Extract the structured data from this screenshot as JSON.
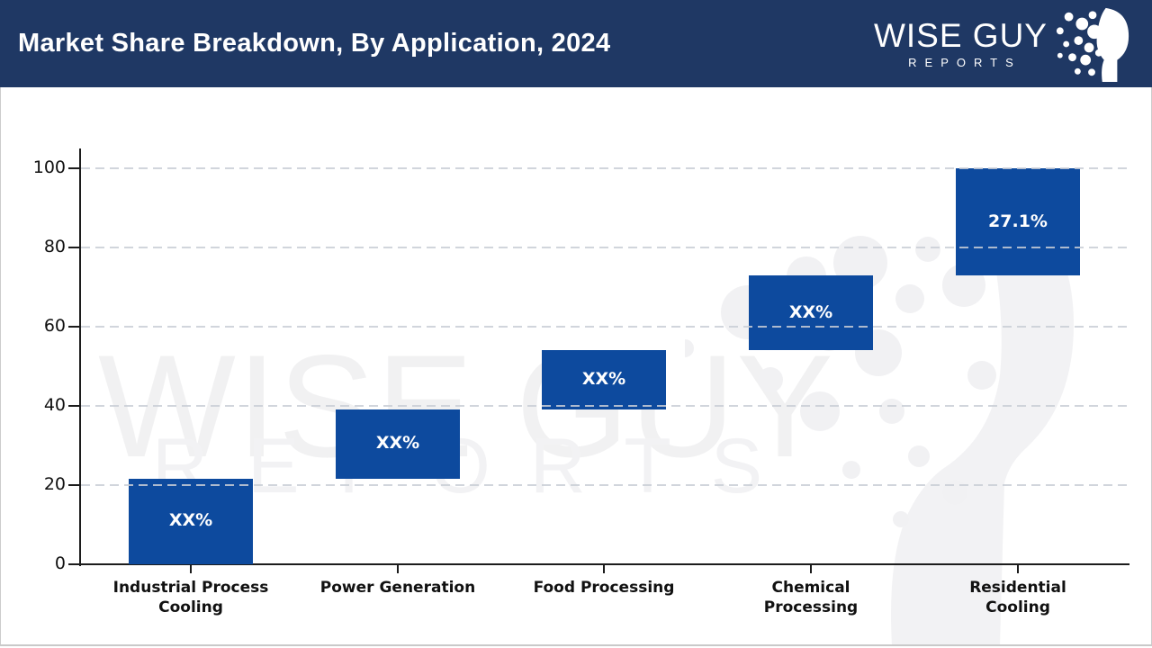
{
  "header": {
    "title": "Market Share Breakdown, By Application, 2024",
    "logo": {
      "line1": "WISE GUY",
      "line2": "REPORTS"
    }
  },
  "watermark": {
    "line1": "WISE GUY",
    "line2": "REPORTS"
  },
  "chart_data": {
    "type": "bar",
    "subtype": "waterfall",
    "title": "Market Share Breakdown, By Application, 2024",
    "categories": [
      "Industrial Process\nCooling",
      "Power Generation",
      "Food Processing",
      "Chemical\nProcessing",
      "Residential\nCooling"
    ],
    "segments": [
      {
        "category": "Industrial Process Cooling",
        "start": 0,
        "end": 21.6,
        "label": "XX%"
      },
      {
        "category": "Power Generation",
        "start": 21.6,
        "end": 39.1,
        "label": "XX%"
      },
      {
        "category": "Food Processing",
        "start": 39.1,
        "end": 54.1,
        "label": "XX%"
      },
      {
        "category": "Chemical Processing",
        "start": 54.1,
        "end": 72.9,
        "label": "XX%"
      },
      {
        "category": "Residential Cooling",
        "start": 72.9,
        "end": 100,
        "label": "27.1%",
        "value": 27.1
      }
    ],
    "ylim": [
      0,
      105
    ],
    "yticks": [
      0,
      20,
      40,
      60,
      80,
      100
    ],
    "xlabel": "",
    "ylabel": "",
    "grid": {
      "axis": "y",
      "style": "dashed",
      "drawn_over_bars": true
    },
    "legend": null,
    "colors": {
      "bar": "#0d4a9e",
      "bar_label": "#ffffff",
      "axis": "#1c1c1c",
      "tick_label": "#111111",
      "grid": "#d9d9d9"
    }
  },
  "colors": {
    "header_bg": "#1f3864",
    "body_bg": "#ffffff",
    "border": "#c9c9c9",
    "watermark": "#f1f1f2"
  }
}
